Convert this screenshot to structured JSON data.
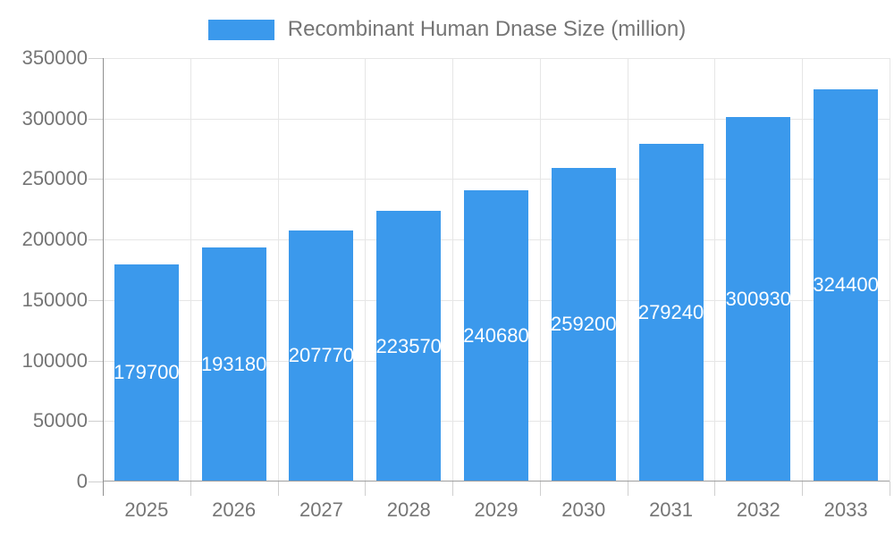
{
  "chart_data": {
    "type": "bar",
    "title": "Recombinant Human Dnase Size (million)",
    "legend": {
      "position": "top",
      "entries": [
        {
          "label": "Recombinant Human Dnase Size (million)",
          "color": "#3b99ec"
        }
      ]
    },
    "categories": [
      "2025",
      "2026",
      "2027",
      "2028",
      "2029",
      "2030",
      "2031",
      "2032",
      "2033"
    ],
    "series": [
      {
        "name": "Recombinant Human Dnase Size (million)",
        "values": [
          179700,
          193180,
          207770,
          223570,
          240680,
          259200,
          279240,
          300930,
          324400
        ]
      }
    ],
    "data_labels": [
      "179700",
      "193180",
      "207770",
      "223570",
      "240680",
      "259200",
      "279240",
      "300930",
      "324400"
    ],
    "xlabel": "",
    "ylabel": "",
    "ylim": [
      0,
      350000
    ],
    "ytick_step": 50000,
    "yticks": [
      0,
      50000,
      100000,
      150000,
      200000,
      250000,
      300000,
      350000
    ],
    "grid": true,
    "colors": {
      "bar": "#3b99ec",
      "bar_label_text": "#ffffff",
      "axis_text": "#757575",
      "gridline": "#e6e6e6",
      "axis_line": "#8f8f8f",
      "tick_mark": "#cfcfcf"
    }
  }
}
